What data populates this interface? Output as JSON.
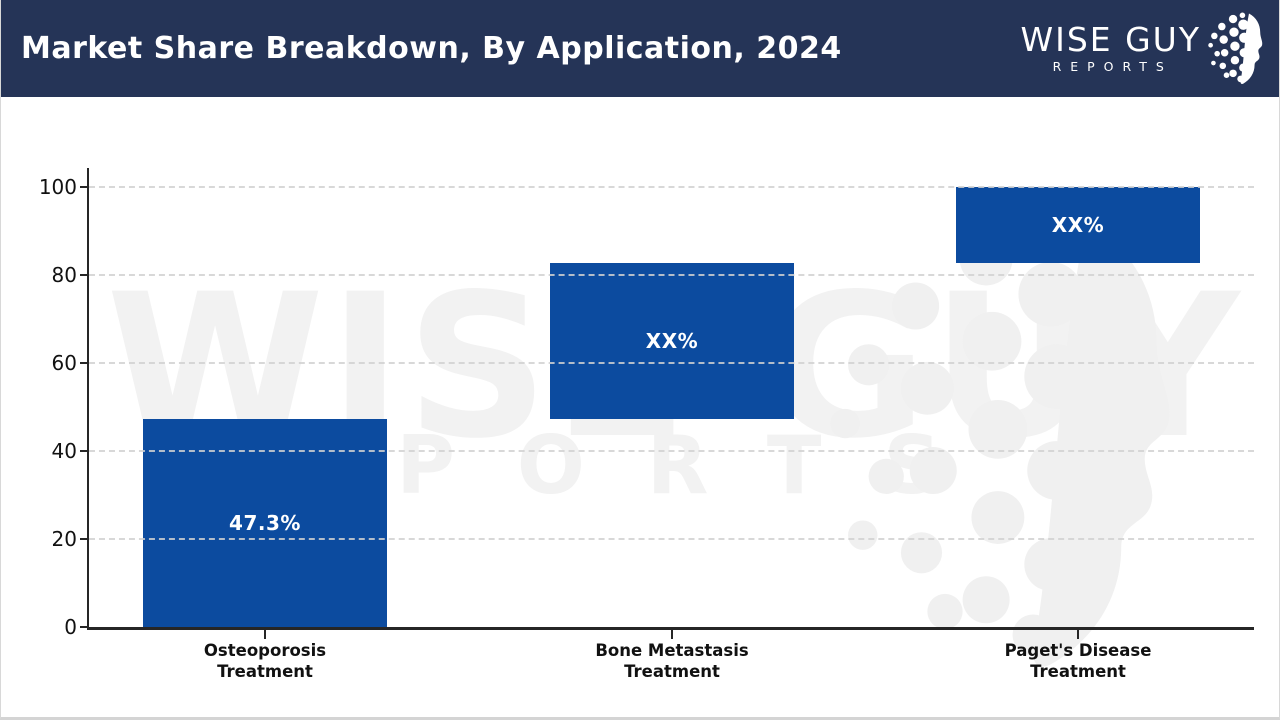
{
  "header": {
    "title": "Market Share Breakdown, By Application, 2024",
    "logo": {
      "line1": "WISE GUY",
      "line2": "REPORTS"
    }
  },
  "watermark": {
    "line1": "WISE GUY",
    "line2": "REPORTS"
  },
  "colors": {
    "header_bg": "#253457",
    "bar": "#0c4b9f",
    "grid": "#d1d1d1",
    "axis": "#262626",
    "bar_label_text": "#ffffff",
    "watermark_text": "#f2f2f2"
  },
  "chart_data": {
    "type": "bar",
    "subtype": "waterfall",
    "title": "Market Share Breakdown, By Application, 2024",
    "categories": [
      "Osteoporosis Treatment",
      "Bone Metastasis Treatment",
      "Paget's Disease Treatment"
    ],
    "category_label_lines": [
      [
        "Osteoporosis",
        "Treatment"
      ],
      [
        "Bone Metastasis",
        "Treatment"
      ],
      [
        "Paget's Disease",
        "Treatment"
      ]
    ],
    "segments": [
      {
        "category": "Osteoporosis Treatment",
        "start": 0,
        "end": 47.3,
        "label": "47.3%"
      },
      {
        "category": "Bone Metastasis Treatment",
        "start": 47.3,
        "end": 82.7,
        "label": "XX%"
      },
      {
        "category": "Paget's Disease Treatment",
        "start": 82.7,
        "end": 100,
        "label": "XX%"
      }
    ],
    "yticks": [
      0,
      20,
      40,
      60,
      80,
      100
    ],
    "ylim": [
      0,
      104
    ],
    "xlabel": "",
    "ylabel": "",
    "grid": "horizontal-dashed",
    "legend": "none"
  }
}
